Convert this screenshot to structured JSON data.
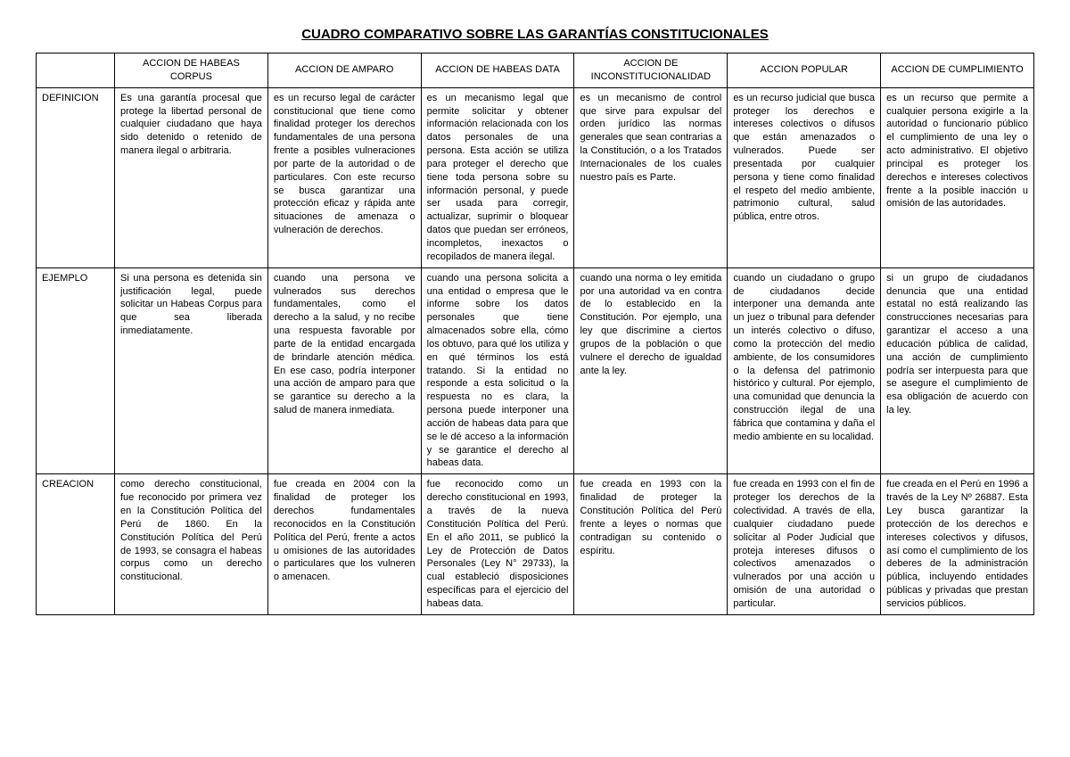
{
  "title": "CUADRO COMPARATIVO SOBRE LAS GARANTÍAS CONSTITUCIONALES",
  "columns": [
    "ACCION DE HABEAS CORPUS",
    "ACCION DE AMPARO",
    "ACCION DE HABEAS DATA",
    "ACCION DE INCONSTITUCIONALIDAD",
    "ACCION POPULAR",
    "ACCION DE CUMPLIMIENTO"
  ],
  "rows": [
    {
      "header": "DEFINICION",
      "cells": [
        "Es una garantía procesal que protege la libertad personal de cualquier ciudadano que haya sido detenido o retenido de manera ilegal o arbitraria.",
        "es un recurso legal de carácter constitucional que tiene como finalidad proteger los derechos fundamentales de una persona frente a posibles vulneraciones por parte de la autoridad o de particulares. Con este recurso se busca garantizar una protección eficaz y rápida ante situaciones de amenaza o vulneración de derechos.",
        "es un mecanismo legal que permite solicitar y obtener información relacionada con los datos personales de una persona. Esta acción se utiliza para proteger el derecho que tiene toda persona sobre su información personal, y puede ser usada para corregir, actualizar, suprimir o bloquear datos que puedan ser erróneos, incompletos, inexactos o recopilados de manera ilegal.",
        "es un mecanismo de control que sirve para expulsar del orden jurídico las normas generales que sean contrarias a la Constitución, o a los Tratados Internacionales de los cuales nuestro país es Parte.",
        "es un recurso judicial que busca proteger los derechos e intereses colectivos o difusos que están amenazados o vulnerados. Puede ser presentada por cualquier persona y tiene como finalidad el respeto del medio ambiente, patrimonio cultural, salud pública, entre otros.",
        "es un recurso que permite a cualquier persona exigirle a la autoridad o funcionario público el cumplimiento de una ley o acto administrativo. El objetivo principal es proteger los derechos e intereses colectivos frente a la posible inacción u omisión de las autoridades."
      ]
    },
    {
      "header": "EJEMPLO",
      "cells": [
        "Si una persona es detenida sin justificación legal, puede solicitar un Habeas Corpus para que sea liberada inmediatamente.",
        "cuando una persona ve vulnerados sus derechos fundamentales, como el derecho a la salud, y no recibe una respuesta favorable por parte de la entidad encargada de brindarle atención médica. En ese caso, podría interponer una acción de amparo para que se garantice su derecho a la salud de manera inmediata.",
        "cuando una persona solicita a una entidad o empresa que le informe sobre los datos personales que tiene almacenados sobre ella, cómo los obtuvo, para qué los utiliza y en qué términos los está tratando. Si la entidad no responde a esta solicitud o la respuesta no es clara, la persona puede interponer una acción de habeas data para que se le dé acceso a la información y se garantice el derecho al habeas data.",
        "cuando una norma o ley emitida por una autoridad va en contra de lo establecido en la Constitución. Por ejemplo, una ley que discrimine a ciertos grupos de la población o que vulnere el derecho de igualdad ante la ley.",
        "cuando un ciudadano o grupo de ciudadanos decide interponer una demanda ante un juez o tribunal para defender un interés colectivo o difuso, como la protección del medio ambiente, de los consumidores o la defensa del patrimonio histórico y cultural. Por ejemplo, una comunidad que denuncia la construcción ilegal de una fábrica que contamina y daña el medio ambiente en su localidad.",
        "si un grupo de ciudadanos denuncia que una entidad estatal no está realizando las construcciones necesarias para garantizar el acceso a una educación pública de calidad, una acción de cumplimiento podría ser interpuesta para que se asegure el cumplimiento de esa obligación de acuerdo con la ley."
      ]
    },
    {
      "header": "CREACION",
      "cells": [
        "como derecho constitucional, fue reconocido por primera vez en la Constitución Política del Perú de 1860. En la Constitución Política del Perú de 1993, se consagra el habeas corpus como un derecho constitucional.",
        "fue creada en 2004 con la finalidad de proteger los derechos fundamentales reconocidos en la Constitución Política del Perú, frente a actos u omisiones de las autoridades o particulares que los vulneren o amenacen.",
        "fue reconocido como un derecho constitucional en 1993, a través de la nueva Constitución Política del Perú. En el año 2011, se publicó la Ley de Protección de Datos Personales (Ley N° 29733), la cual estableció disposiciones específicas para el ejercicio del habeas data.",
        "fue creada en 1993 con la finalidad de proteger la Constitución Política del Perú frente a leyes o normas que contradigan su contenido o espíritu.",
        "fue creada en 1993 con el fin de proteger los derechos de la colectividad. A través de ella, cualquier ciudadano puede solicitar al Poder Judicial que proteja intereses difusos o colectivos amenazados o vulnerados por una acción u omisión de una autoridad o particular.",
        "fue creada en el Perú en 1996 a través de la Ley Nº 26887. Esta Ley busca garantizar la protección de los derechos e intereses colectivos y difusos, así como el cumplimiento de los deberes de la administración pública, incluyendo entidades públicas y privadas que prestan servicios públicos."
      ]
    }
  ]
}
